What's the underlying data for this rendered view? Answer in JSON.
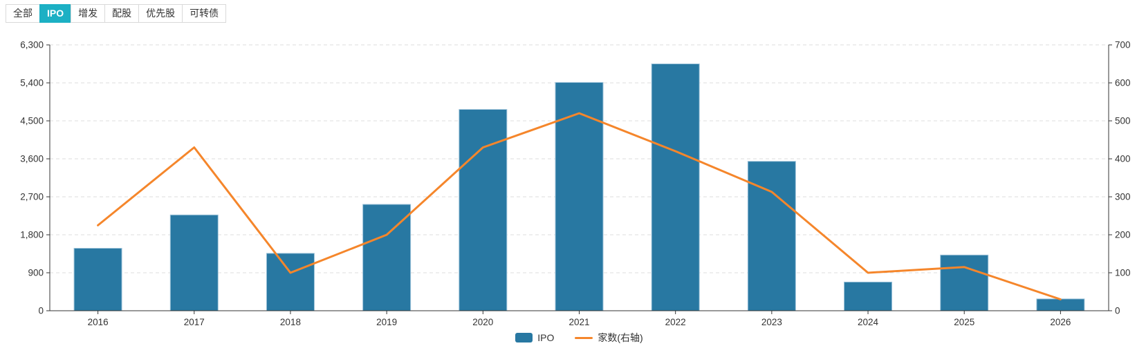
{
  "tabs": {
    "active_bg": "#1cb0c4",
    "items": [
      {
        "label": "全部",
        "active": false
      },
      {
        "label": "IPO",
        "active": true
      },
      {
        "label": "增发",
        "active": false
      },
      {
        "label": "配股",
        "active": false
      },
      {
        "label": "优先股",
        "active": false
      },
      {
        "label": "可转债",
        "active": false
      }
    ]
  },
  "chart_data": {
    "type": "bar+line combo",
    "categories": [
      "2016",
      "2017",
      "2018",
      "2019",
      "2020",
      "2021",
      "2022",
      "2023",
      "2024",
      "2025",
      "2026"
    ],
    "series": [
      {
        "name": "IPO",
        "type": "bar",
        "axis": "left",
        "color": "#2878a2",
        "values": [
          1480,
          2270,
          1360,
          2520,
          4770,
          5410,
          5850,
          3540,
          680,
          1320,
          280
        ]
      },
      {
        "name": "家数(右轴)",
        "type": "line",
        "axis": "right",
        "color": "#f5862b",
        "values": [
          225,
          430,
          100,
          200,
          430,
          520,
          420,
          313,
          100,
          115,
          30
        ]
      }
    ],
    "left_axis": {
      "min": 0,
      "max": 6300,
      "step": 900,
      "tick_labels": [
        "0",
        "900",
        "1,800",
        "2,700",
        "3,600",
        "4,500",
        "5,400",
        "6,300"
      ]
    },
    "right_axis": {
      "min": 0,
      "max": 700,
      "step": 100,
      "tick_labels": [
        "0",
        "100",
        "200",
        "300",
        "400",
        "500",
        "600",
        "700"
      ]
    },
    "grid": true,
    "grid_color": "#dddddd",
    "axis_color": "#333333",
    "legend_position": "bottom-center",
    "title": "",
    "xlabel": "",
    "ylabel": ""
  }
}
